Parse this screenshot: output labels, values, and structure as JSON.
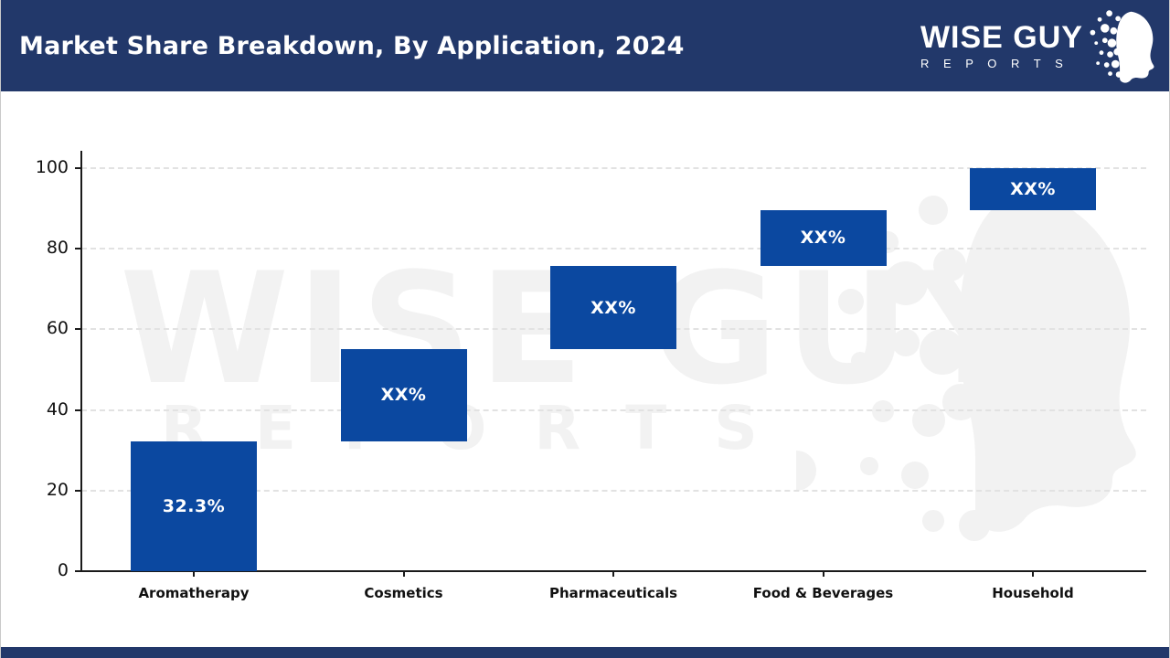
{
  "header": {
    "title": "Market Share Breakdown, By Application, 2024",
    "logo": {
      "line1": "WISE GUY",
      "line2": "R E P O R T S"
    }
  },
  "watermark": {
    "line1": "WISE GUY",
    "line2": "REPORTS"
  },
  "colors": {
    "header_bg": "#22386a",
    "bar_blue": "#0b48a0",
    "axis": "#1a1a1a",
    "gridline": "#e2e2e2",
    "bar_label": "#ffffff"
  },
  "chart_data": {
    "type": "bar",
    "subtype": "waterfall",
    "title": "Market Share Breakdown, By Application, 2024",
    "categories": [
      "Aromatherapy",
      "Cosmetics",
      "Pharmaceuticals",
      "Food & Beverages",
      "Household"
    ],
    "segments": [
      {
        "category": "Aromatherapy",
        "start": 0,
        "end": 32.3,
        "value": 32.3,
        "label": "32.3%"
      },
      {
        "category": "Cosmetics",
        "start": 32.3,
        "end": 55.0,
        "value": 22.7,
        "label": "XX%"
      },
      {
        "category": "Pharmaceuticals",
        "start": 55.0,
        "end": 75.8,
        "value": 20.8,
        "label": "XX%"
      },
      {
        "category": "Food & Beverages",
        "start": 75.8,
        "end": 89.6,
        "value": 13.8,
        "label": "XX%"
      },
      {
        "category": "Household",
        "start": 89.6,
        "end": 100,
        "value": 10.4,
        "label": "XX%"
      }
    ],
    "cumulative": [
      32.3,
      55.0,
      75.8,
      89.6,
      100
    ],
    "value_labels": [
      "32.3%",
      "XX%",
      "XX%",
      "XX%",
      "XX%"
    ],
    "xlabel": "",
    "ylabel": "",
    "ylim": [
      0,
      104
    ],
    "yticks": [
      0,
      20,
      40,
      60,
      80,
      100
    ],
    "grid": "horizontal-dashed",
    "legend": "none"
  }
}
